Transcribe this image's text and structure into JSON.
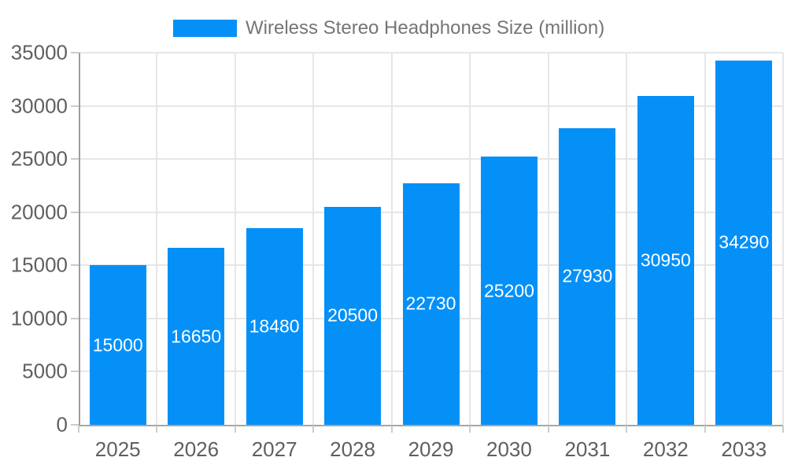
{
  "chart_data": {
    "type": "bar",
    "title": "Wireless Stereo Headphones Size (million)",
    "legend_position": "top",
    "grid": true,
    "categories": [
      "2025",
      "2026",
      "2027",
      "2028",
      "2029",
      "2030",
      "2031",
      "2032",
      "2033"
    ],
    "series": [
      {
        "name": "Wireless Stereo Headphones Size (million)",
        "values": [
          15000,
          16650,
          18480,
          20500,
          22730,
          25200,
          27930,
          30950,
          34290
        ]
      }
    ],
    "xlabel": "",
    "ylabel": "",
    "ylim": [
      0,
      35000
    ],
    "yticks": [
      0,
      5000,
      10000,
      15000,
      20000,
      25000,
      30000,
      35000
    ],
    "value_labels_shown": true,
    "colors": {
      "bar": "#0590f8",
      "bar_value_text": "#ffffff",
      "grid": "#e6e6e6",
      "axis_line": "#9e9e9e",
      "tick": "#cccccc",
      "axis_text": "#5f5f5f",
      "legend_text": "#757575",
      "background": "#ffffff"
    }
  }
}
